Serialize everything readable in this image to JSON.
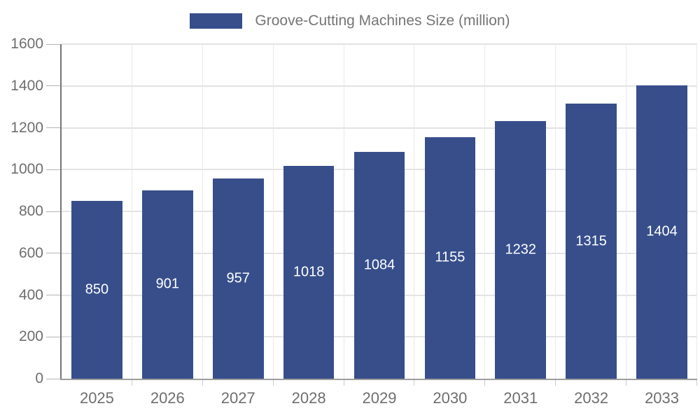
{
  "legend": {
    "label": "Groove-Cutting Machines Size (million)"
  },
  "colors": {
    "bar": "#374E8B",
    "value_label": "#ffffff",
    "legend_text": "#757575"
  },
  "chart_data": {
    "type": "bar",
    "title": "Groove-Cutting Machines Size (million)",
    "categories": [
      "2025",
      "2026",
      "2027",
      "2028",
      "2029",
      "2030",
      "2031",
      "2032",
      "2033"
    ],
    "series": [
      {
        "name": "Groove-Cutting Machines Size (million)",
        "values": [
          850,
          901,
          957,
          1018,
          1084,
          1155,
          1232,
          1315,
          1404
        ]
      }
    ],
    "xlabel": "",
    "ylabel": "",
    "ylim": [
      0,
      1600
    ],
    "ytick_step": 200,
    "grid": true,
    "legend_position": "top",
    "value_label_position": "inside-center",
    "bar_width_fraction": 0.72
  }
}
